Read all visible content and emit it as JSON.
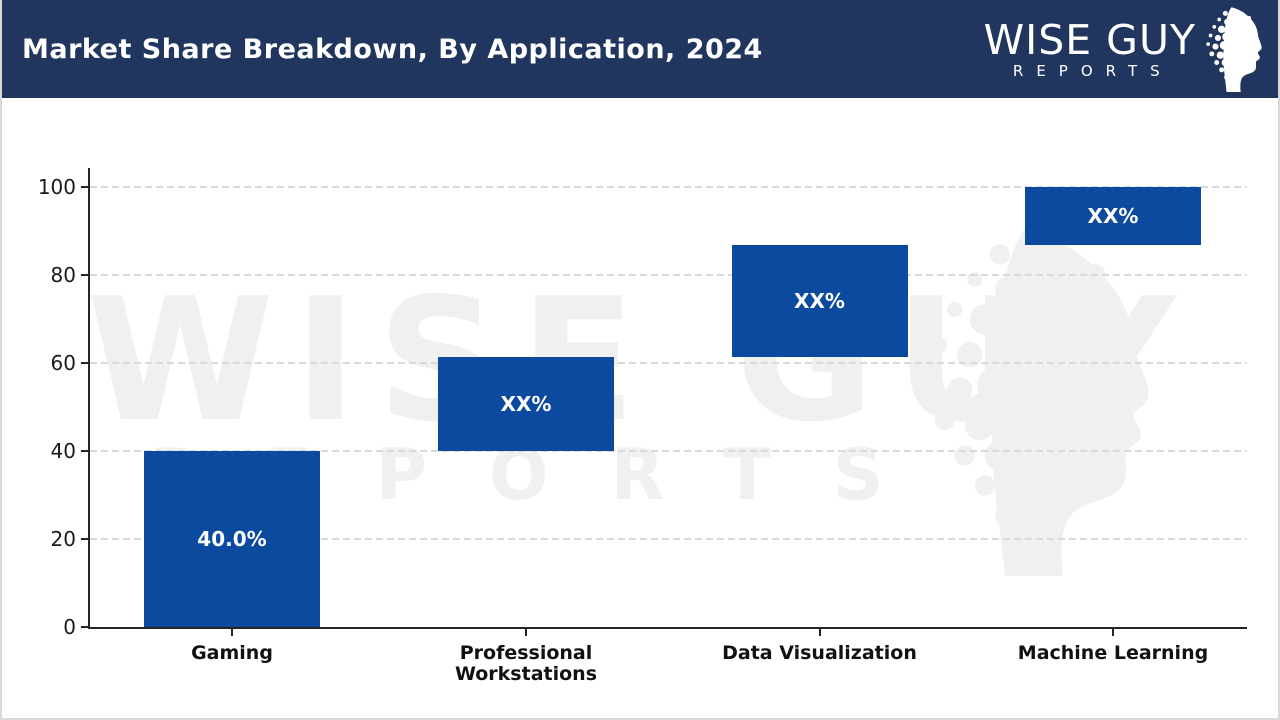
{
  "header": {
    "title": "Market Share Breakdown, By Application, 2024",
    "bg_color": "#20365f",
    "logo": {
      "line1": "WISE GUY",
      "line2": "REPORTS"
    }
  },
  "watermark": {
    "line1": "WISE GUY",
    "line2": "REPORTS"
  },
  "chart_data": {
    "type": "bar",
    "subtype": "waterfall",
    "title": "Market Share Breakdown, By Application, 2024",
    "categories": [
      "Gaming",
      "Professional Workstations",
      "Data Visualization",
      "Machine Learning"
    ],
    "segments": [
      {
        "category": "Gaming",
        "start": 0,
        "end": 40,
        "label": "40.0%"
      },
      {
        "category": "Professional Workstations",
        "start": 40,
        "end": 61.4,
        "label": "XX%"
      },
      {
        "category": "Data Visualization",
        "start": 61.4,
        "end": 86.8,
        "label": "XX%"
      },
      {
        "category": "Machine Learning",
        "start": 86.8,
        "end": 100,
        "label": "XX%"
      }
    ],
    "ylim": [
      0,
      100
    ],
    "yticks": [
      0,
      20,
      40,
      60,
      80,
      100
    ],
    "xlabel": "",
    "ylabel": "",
    "grid": "horizontal-dashed",
    "legend": "none",
    "bar_color": "#0b4a9e",
    "bar_label_color": "#ffffff",
    "axis_color": "#262626",
    "grid_color": "#d9d9d9"
  }
}
